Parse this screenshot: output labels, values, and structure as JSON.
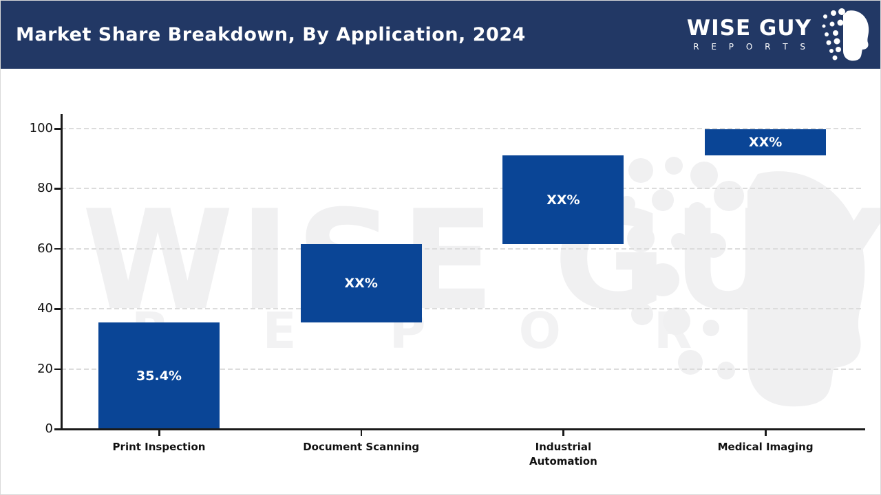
{
  "header": {
    "title": "Market Share Breakdown, By Application, 2024",
    "logo": {
      "line1": "WISE GUY",
      "line2": "R E P O R T S"
    }
  },
  "watermark": {
    "line1": "WISE GUY",
    "line2": "R E P O R T S"
  },
  "colors": {
    "header_bg": "#223865",
    "title_text": "#ffffff",
    "bar": "#0a4596",
    "bar_label_text": "#ffffff",
    "grid": "#dcdcdc",
    "axis": "#1a1a1a",
    "watermark": "#f0f0f1"
  },
  "chart_data": {
    "type": "bar",
    "subtype": "floating-segment (waterfall-style market share)",
    "title": "Market Share Breakdown, By Application, 2024",
    "xlabel": "",
    "ylabel": "",
    "categories": [
      "Print Inspection",
      "Document Scanning",
      "Industrial\nAutomation",
      "Medical Imaging"
    ],
    "bars": [
      {
        "category": "Print Inspection",
        "start": 0,
        "end": 35.4,
        "label": "35.4%"
      },
      {
        "category": "Document Scanning",
        "start": 35.4,
        "end": 61.5,
        "label": "XX%"
      },
      {
        "category": "Industrial Automation",
        "start": 61.5,
        "end": 91.0,
        "label": "XX%"
      },
      {
        "category": "Medical Imaging",
        "start": 91.0,
        "end": 99.8,
        "label": "XX%"
      }
    ],
    "yticks": [
      0,
      20,
      40,
      60,
      80,
      100
    ],
    "ylim": [
      0,
      104
    ],
    "grid": "horizontal dashed lines at y ticks",
    "legend": "none"
  }
}
